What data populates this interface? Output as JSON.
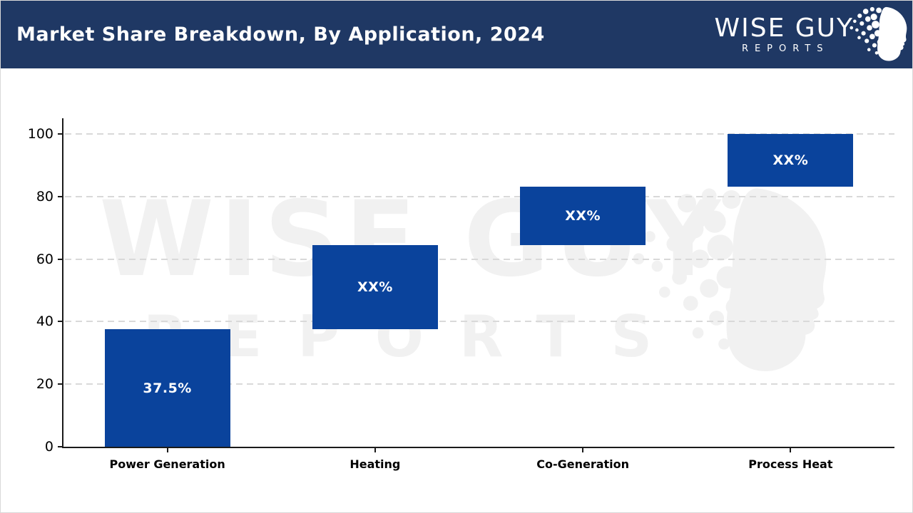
{
  "header": {
    "title": "Market Share Breakdown, By Application, 2024",
    "logo": {
      "primary": "WISE GUY",
      "secondary": "REPORTS"
    }
  },
  "watermark": {
    "primary": "WISE GUY",
    "secondary": "REPORTS"
  },
  "colors": {
    "header_bg": "#1f3864",
    "bar": "#0a439c",
    "bar_label": "#ffffff",
    "grid": "#d9d9d9",
    "axis": "#1a1a1a",
    "watermark": "#f1f1f1",
    "logo": "#ffffff"
  },
  "chart_data": {
    "type": "bar",
    "subtype": "waterfall",
    "title": "Market Share Breakdown, By Application, 2024",
    "xlabel": "",
    "ylabel": "",
    "categories": [
      "Power Generation",
      "Heating",
      "Co-Generation",
      "Process Heat"
    ],
    "segments": [
      {
        "category": "Power Generation",
        "start": 0,
        "end": 37.5,
        "label": "37.5%"
      },
      {
        "category": "Heating",
        "start": 37.5,
        "end": 64.5,
        "label": "XX%"
      },
      {
        "category": "Co-Generation",
        "start": 64.5,
        "end": 83.2,
        "label": "XX%"
      },
      {
        "category": "Process Heat",
        "start": 83.2,
        "end": 100,
        "label": "XX%"
      }
    ],
    "yticks": [
      0,
      20,
      40,
      60,
      80,
      100
    ],
    "ylim": [
      0,
      105
    ],
    "grid": true,
    "legend": false
  }
}
